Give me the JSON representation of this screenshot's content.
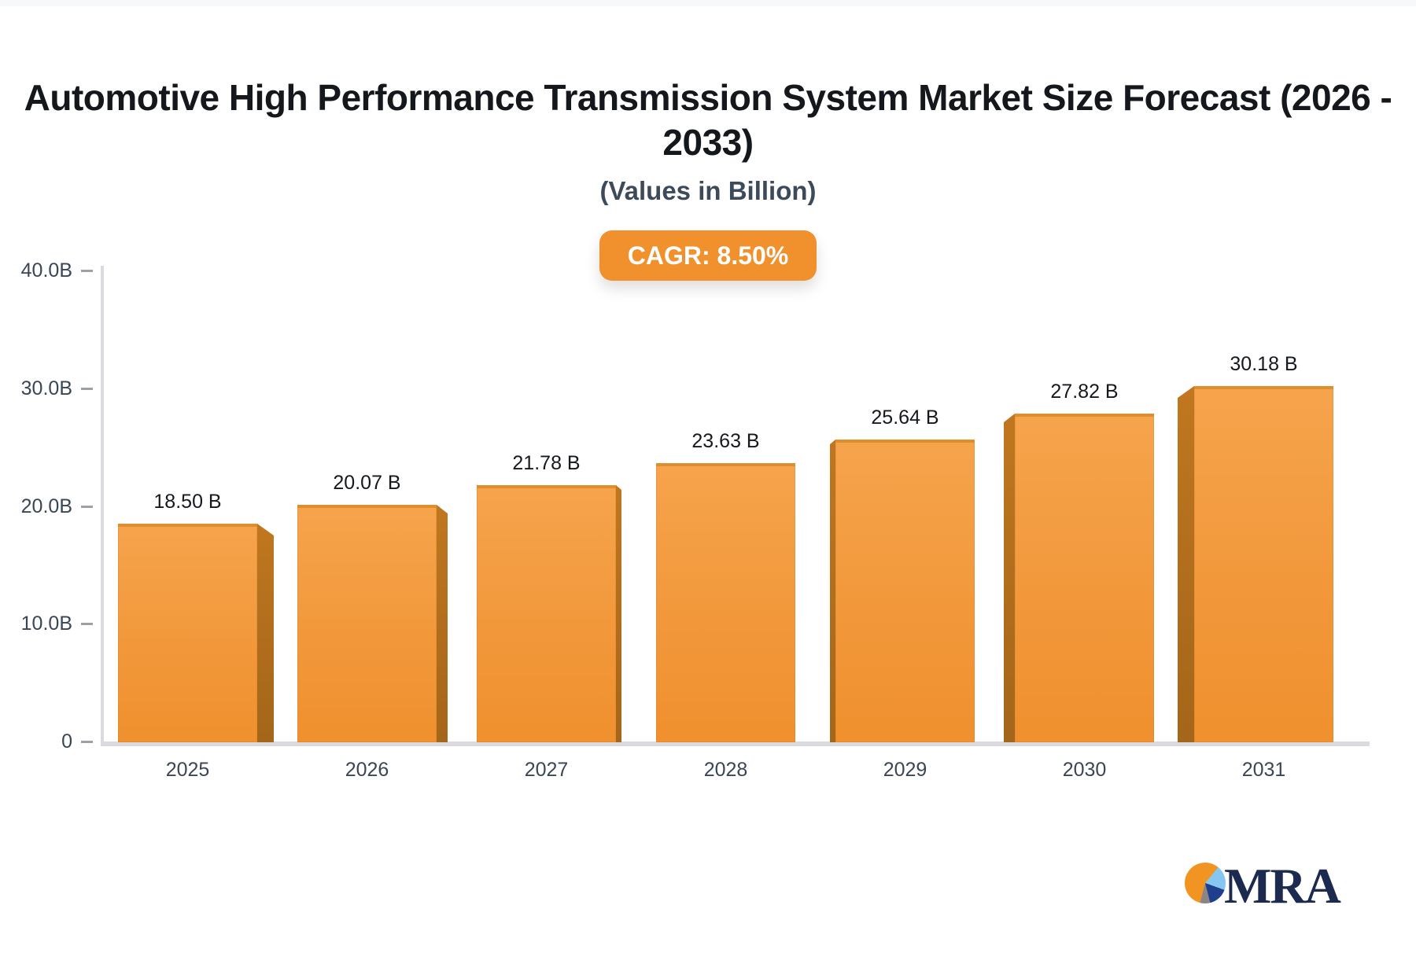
{
  "header": {
    "title": "Automotive High Performance Transmission System Market Size Forecast (2026 - 2033)",
    "title_lines": [
      "Automotive High Performance Transmission System Market Size Forecast (2026 -",
      "2033)"
    ],
    "subtitle": "(Values in Billion)",
    "cagr_label": "CAGR: 8.50%"
  },
  "chart_data": {
    "type": "bar",
    "title": "Automotive High Performance Transmission System Market Size Forecast (2026 - 2033)",
    "subtitle": "(Values in Billion)",
    "cagr": "8.50%",
    "categories": [
      "2025",
      "2026",
      "2027",
      "2028",
      "2029",
      "2030",
      "2031"
    ],
    "values": [
      18.5,
      20.07,
      21.78,
      23.63,
      25.64,
      27.82,
      30.18
    ],
    "value_labels": [
      "18.50 B",
      "20.07 B",
      "21.78 B",
      "23.63 B",
      "25.64 B",
      "27.82 B",
      "30.18 B"
    ],
    "xlabel": "",
    "ylabel": "",
    "ylim": [
      0,
      40
    ],
    "yticks": [
      {
        "value": 40,
        "label": "40.0B"
      },
      {
        "value": 30,
        "label": "30.0B"
      },
      {
        "value": 20,
        "label": "20.0B"
      },
      {
        "value": 10,
        "label": "10.0B"
      },
      {
        "value": 0,
        "label": "0"
      }
    ],
    "grid": false,
    "legend_position": "none",
    "colors": {
      "bar_face_top": "#f6a44d",
      "bar_face_bottom": "#f0902e",
      "bar_top_edge": "#df8e2f",
      "bar_side": "#b06d1c",
      "axis": "#d9dbde",
      "tick": "#9aa1a9",
      "value_label_text": "#15191e",
      "axis_label_text": "#3a4656",
      "accent_orange": "#f0912d"
    }
  },
  "logo": {
    "text": "MRA",
    "pie_slice_colors": [
      "#f29421",
      "#85c7f0",
      "#1f3e8c",
      "#8d8486"
    ],
    "text_color": "#1b2a4e"
  }
}
